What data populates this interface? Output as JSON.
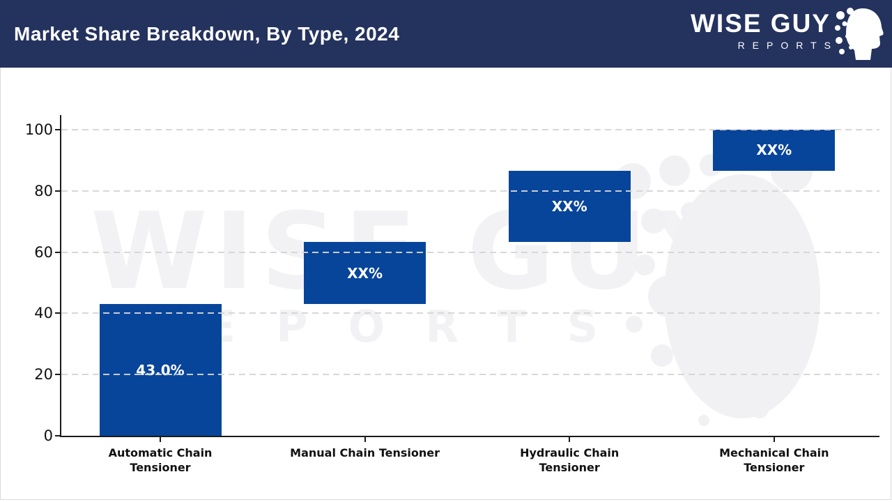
{
  "header": {
    "title": "Market Share Breakdown, By Type, 2024",
    "logo": {
      "line1": "WISE GUY",
      "line2": "REPORTS",
      "face_icon": "face-profile-dots-icon"
    },
    "bg_color": "#24325E"
  },
  "watermark": {
    "line1": "WISE GUY",
    "line2": "REPORTS",
    "face_icon": "face-profile-dots-icon"
  },
  "chart_data": {
    "type": "bar",
    "subtype": "waterfall",
    "title": "Market Share Breakdown, By Type, 2024",
    "categories": [
      "Automatic Chain Tensioner",
      "Manual Chain Tensioner",
      "Hydraulic Chain Tensioner",
      "Mechanical Chain Tensioner"
    ],
    "segments": [
      {
        "start": 0,
        "end": 43,
        "label": "43.0%"
      },
      {
        "start": 43,
        "end": 63.3,
        "label": "XX%"
      },
      {
        "start": 63.3,
        "end": 86.6,
        "label": "XX%"
      },
      {
        "start": 86.6,
        "end": 100,
        "label": "XX%"
      }
    ],
    "xlabel": "",
    "ylabel": "",
    "ylim": [
      0,
      100
    ],
    "yticks": [
      0,
      20,
      40,
      60,
      80,
      100
    ],
    "grid": "horizontal-dashed",
    "legend": "none",
    "bar_color": "#07459B",
    "label_color": "#ffffff"
  }
}
